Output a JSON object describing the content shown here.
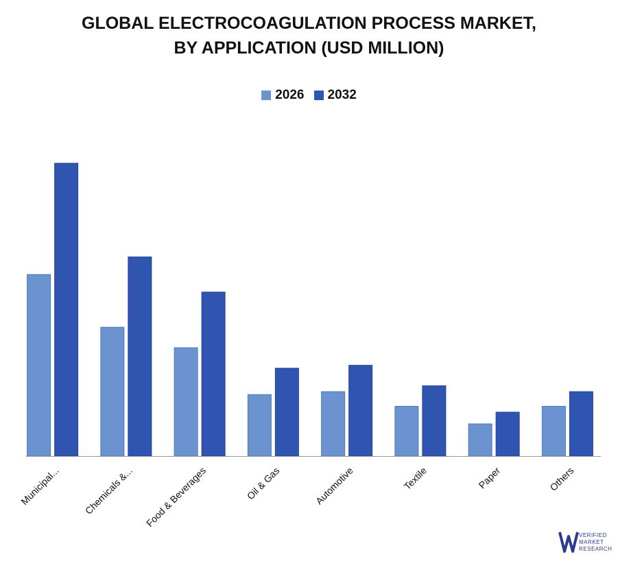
{
  "title_line1": "GLOBAL ELECTROCOAGULATION PROCESS MARKET,",
  "title_line2": "BY APPLICATION (USD MILLION)",
  "colors": {
    "series_2026": "#6b93cf",
    "series_2032": "#2f55b0",
    "axis": "#9a9a9a"
  },
  "logo": {
    "line1": "VERIFIED",
    "line2": "MARKET",
    "line3": "RESEARCH"
  },
  "chart_data": {
    "type": "bar",
    "title": "GLOBAL ELECTROCOAGULATION PROCESS MARKET, BY APPLICATION (USD MILLION)",
    "categories": [
      "Municipal...",
      "Chemicals &...",
      "Food & Beverages",
      "Oil & Gas",
      "Automotive",
      "Textile",
      "Paper",
      "Others"
    ],
    "series": [
      {
        "name": "2026",
        "values": [
          62,
          44,
          37,
          21,
          22,
          17,
          11,
          17
        ]
      },
      {
        "name": "2032",
        "values": [
          100,
          68,
          56,
          30,
          31,
          24,
          15,
          22
        ]
      }
    ],
    "ylim": [
      0,
      100
    ],
    "legend": "top-center",
    "grid": false
  }
}
